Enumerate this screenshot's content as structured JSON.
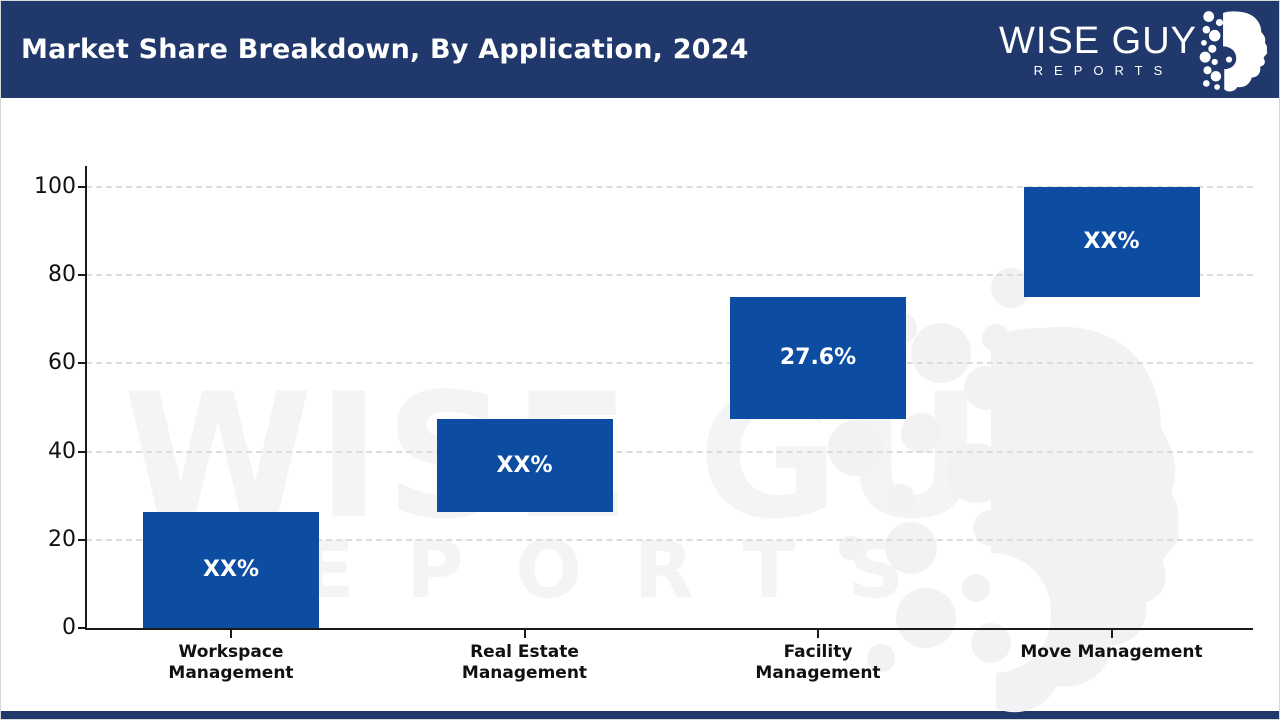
{
  "header": {
    "title": "Market Share Breakdown, By Application, 2024",
    "logo_line1": "WISE GUY",
    "logo_line2": "REPORTS"
  },
  "watermark": {
    "line1": "WISE GUY",
    "line2": "REPORTS"
  },
  "footer": {},
  "colors": {
    "header_bg": "#20386b",
    "bar": "#0d4da1",
    "grid": "#dcdcdc",
    "axis": "#1a1a1a",
    "watermark": "#f4f4f6",
    "bar_label": "#ffffff"
  },
  "chart_data": {
    "type": "bar",
    "variant": "waterfall-floating-bars",
    "title": "Market Share Breakdown, By Application, 2024",
    "xlabel": "",
    "ylabel": "",
    "categories": [
      "Workspace Management",
      "Real Estate Management",
      "Facility Management",
      "Move Management"
    ],
    "segments": [
      {
        "category": "Workspace Management",
        "category_lines": [
          "Workspace",
          "Management"
        ],
        "start": 0,
        "end": 26.4,
        "label": "XX%"
      },
      {
        "category": "Real Estate Management",
        "category_lines": [
          "Real Estate",
          "Management"
        ],
        "start": 26.4,
        "end": 47.5,
        "label": "XX%"
      },
      {
        "category": "Facility Management",
        "category_lines": [
          "Facility",
          "Management"
        ],
        "start": 47.5,
        "end": 75.1,
        "label": "27.6%"
      },
      {
        "category": "Move Management",
        "category_lines": [
          "Move Management"
        ],
        "start": 75.1,
        "end": 100,
        "label": "XX%"
      }
    ],
    "yticks": [
      0,
      20,
      40,
      60,
      80,
      100
    ],
    "ylim": [
      0,
      104
    ],
    "grid": "horizontal-dashed",
    "legend": "none",
    "bar_color": "#0d4da1",
    "value_label_color": "#ffffff"
  }
}
